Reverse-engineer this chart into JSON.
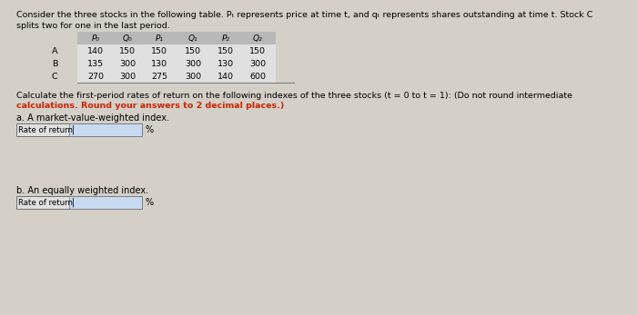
{
  "title_line1": "Consider the three stocks in the following table. Pₜ represents price at time t, and qₜ represents shares outstanding at time t. Stock C",
  "title_line2": "splits two for one in the last period.",
  "col_headers": [
    "P₀",
    "Q₀",
    "P₁",
    "Q₁",
    "P₂",
    "Q₂"
  ],
  "rows": [
    [
      "A",
      "140",
      "150",
      "150",
      "150",
      "150",
      "150"
    ],
    [
      "B",
      "135",
      "300",
      "130",
      "300",
      "130",
      "300"
    ],
    [
      "C",
      "270",
      "300",
      "275",
      "300",
      "140",
      "600"
    ]
  ],
  "table_header_bg": "#b8b8b8",
  "table_row_bg": "#e0e0e0",
  "instruction_line1": "Calculate the first-period rates of return on the following indexes of the three stocks (t = 0 to t = 1): (Do not round intermediate",
  "instruction_line2_bold": "calculations. Round your answers to 2 decimal places.)",
  "part_a_label": "a. A market-value-weighted index.",
  "part_b_label": "b. An equally weighted index.",
  "input_label": "Rate of return",
  "pct_label": "%",
  "bg_color": "#d4d0c8",
  "input_box_bg": "#c8daf0",
  "border_color": "#808080",
  "text_color": "#000000",
  "bold_text_color": "#cc2200",
  "input_border_color": "#707070"
}
